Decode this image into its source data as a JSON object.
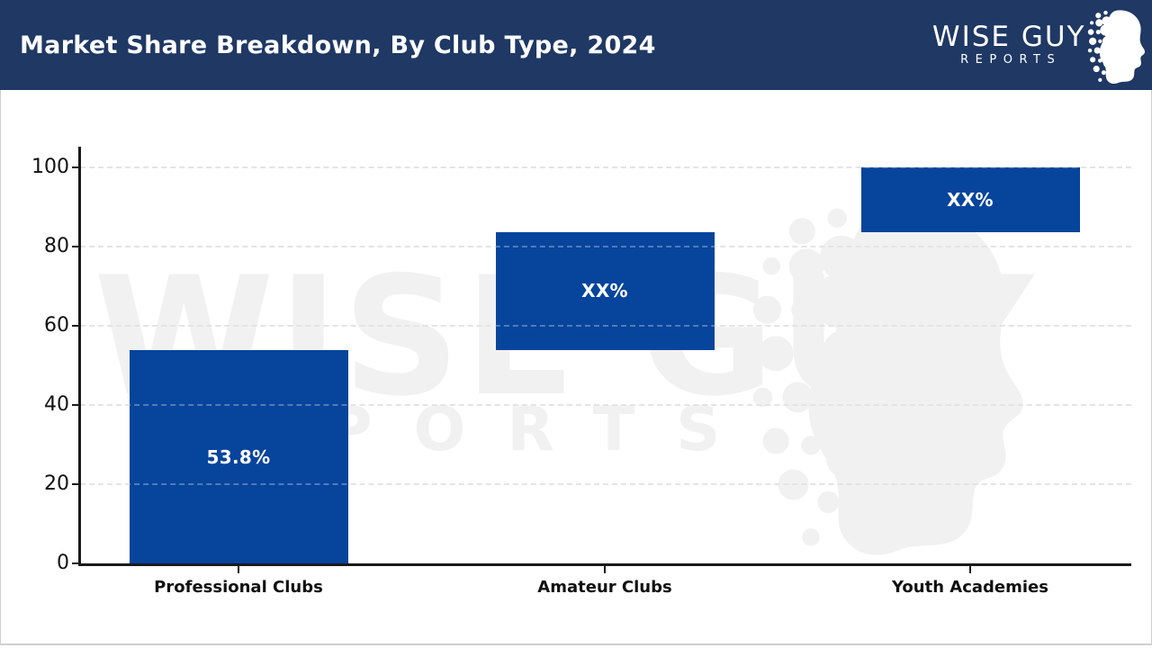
{
  "header": {
    "title": "Market Share Breakdown, By Club Type, 2024",
    "logo": {
      "line1": "WISE GUY",
      "line2": "REPORTS",
      "icon": "dotted-face-profile"
    }
  },
  "watermark": {
    "line1": "WISE GUY",
    "line2": "REPORTS",
    "icon": "dotted-face-profile"
  },
  "chart_data": {
    "type": "bar",
    "subtype": "floating-segment-bars (waterfall style, segments sum to 100%)",
    "title": "Market Share Breakdown, By Club Type, 2024",
    "categories": [
      "Professional Clubs",
      "Amateur Clubs",
      "Youth Academies"
    ],
    "segments": [
      {
        "category": "Professional Clubs",
        "start": 0,
        "end": 53.8,
        "value": 53.8,
        "label": "53.8%"
      },
      {
        "category": "Amateur Clubs",
        "start": 53.8,
        "end": 83.7,
        "value": 29.9,
        "label": "XX%"
      },
      {
        "category": "Youth Academies",
        "start": 83.7,
        "end": 100,
        "value": 16.3,
        "label": "XX%"
      }
    ],
    "xlabel": "",
    "ylabel": "",
    "yticks": [
      0,
      20,
      40,
      60,
      80,
      100
    ],
    "ylim": [
      0,
      105.2
    ],
    "grid": "horizontal-dashed",
    "legend_position": "none"
  },
  "colors": {
    "header_bg": "#1f3864",
    "bar": "#07449c",
    "grid": "#d9d9d9",
    "axis": "#1a1a1a",
    "tick_text": "#111111",
    "bar_label_text": "#ffffff",
    "watermark": "#f1f1f1",
    "content_border": "#cfcfcf",
    "background": "#ffffff"
  }
}
